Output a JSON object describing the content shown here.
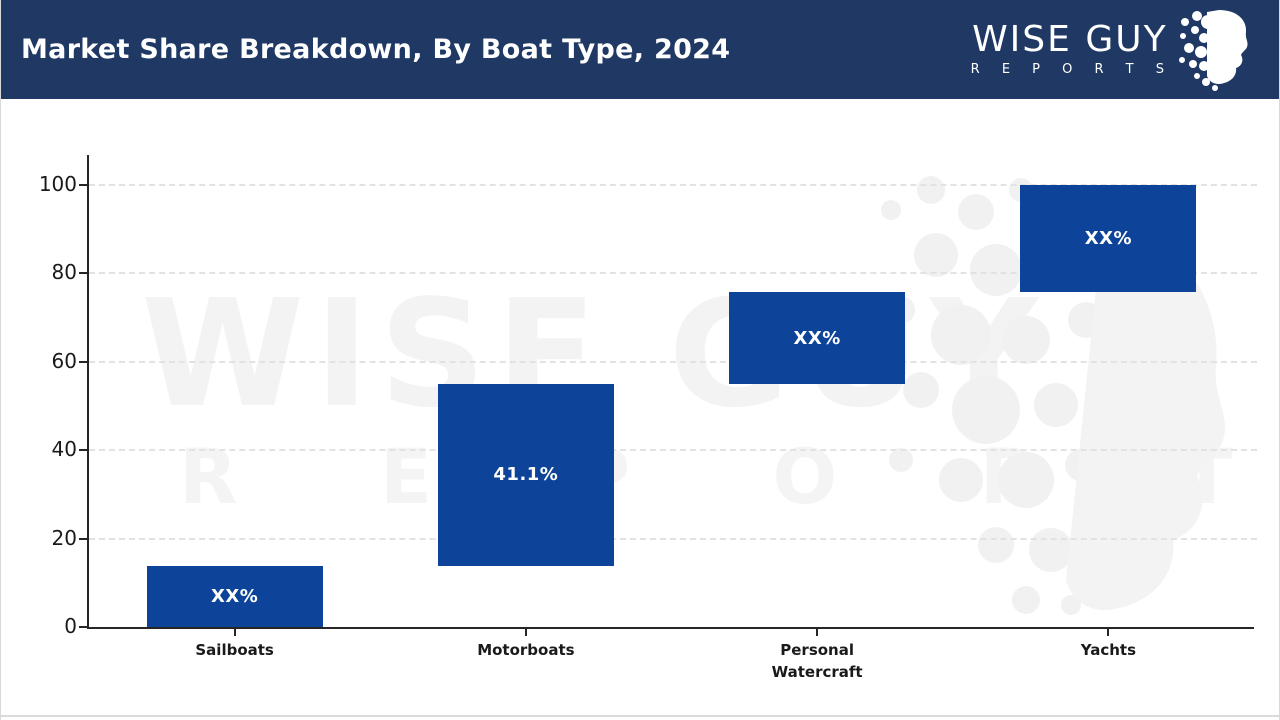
{
  "header": {
    "title": "Market Share Breakdown, By Boat Type, 2024",
    "bg_color": "#1f3864",
    "logo": {
      "line1": "WISE GUY",
      "line2": "R E P O R T S"
    }
  },
  "watermark": {
    "line1": "WISE GUY",
    "line2": "R E P O R T S"
  },
  "chart_data": {
    "type": "bar",
    "subtype": "floating-waterfall",
    "title": "Market Share Breakdown, By Boat Type, 2024",
    "categories": [
      "Sailboats",
      "Motorboats",
      "Personal Watercraft",
      "Yachts"
    ],
    "segments": [
      {
        "category": "Sailboats",
        "start": 0,
        "end": 13.9,
        "label": "XX%"
      },
      {
        "category": "Motorboats",
        "start": 13.9,
        "end": 55.0,
        "label": "41.1%"
      },
      {
        "category": "Personal Watercraft",
        "start": 55.0,
        "end": 75.7,
        "label": "XX%"
      },
      {
        "category": "Yachts",
        "start": 75.7,
        "end": 100.0,
        "label": "XX%"
      }
    ],
    "xlabel": "",
    "ylabel": "",
    "ylim": [
      0,
      106
    ],
    "yticks": [
      0,
      20,
      40,
      60,
      80,
      100
    ],
    "grid": "horizontal-dashed",
    "legend": "none",
    "bar_color": "#0d4499",
    "bar_label_color": "#ffffff",
    "axis_color": "#262626",
    "gridline_color": "#e2e2e2"
  }
}
